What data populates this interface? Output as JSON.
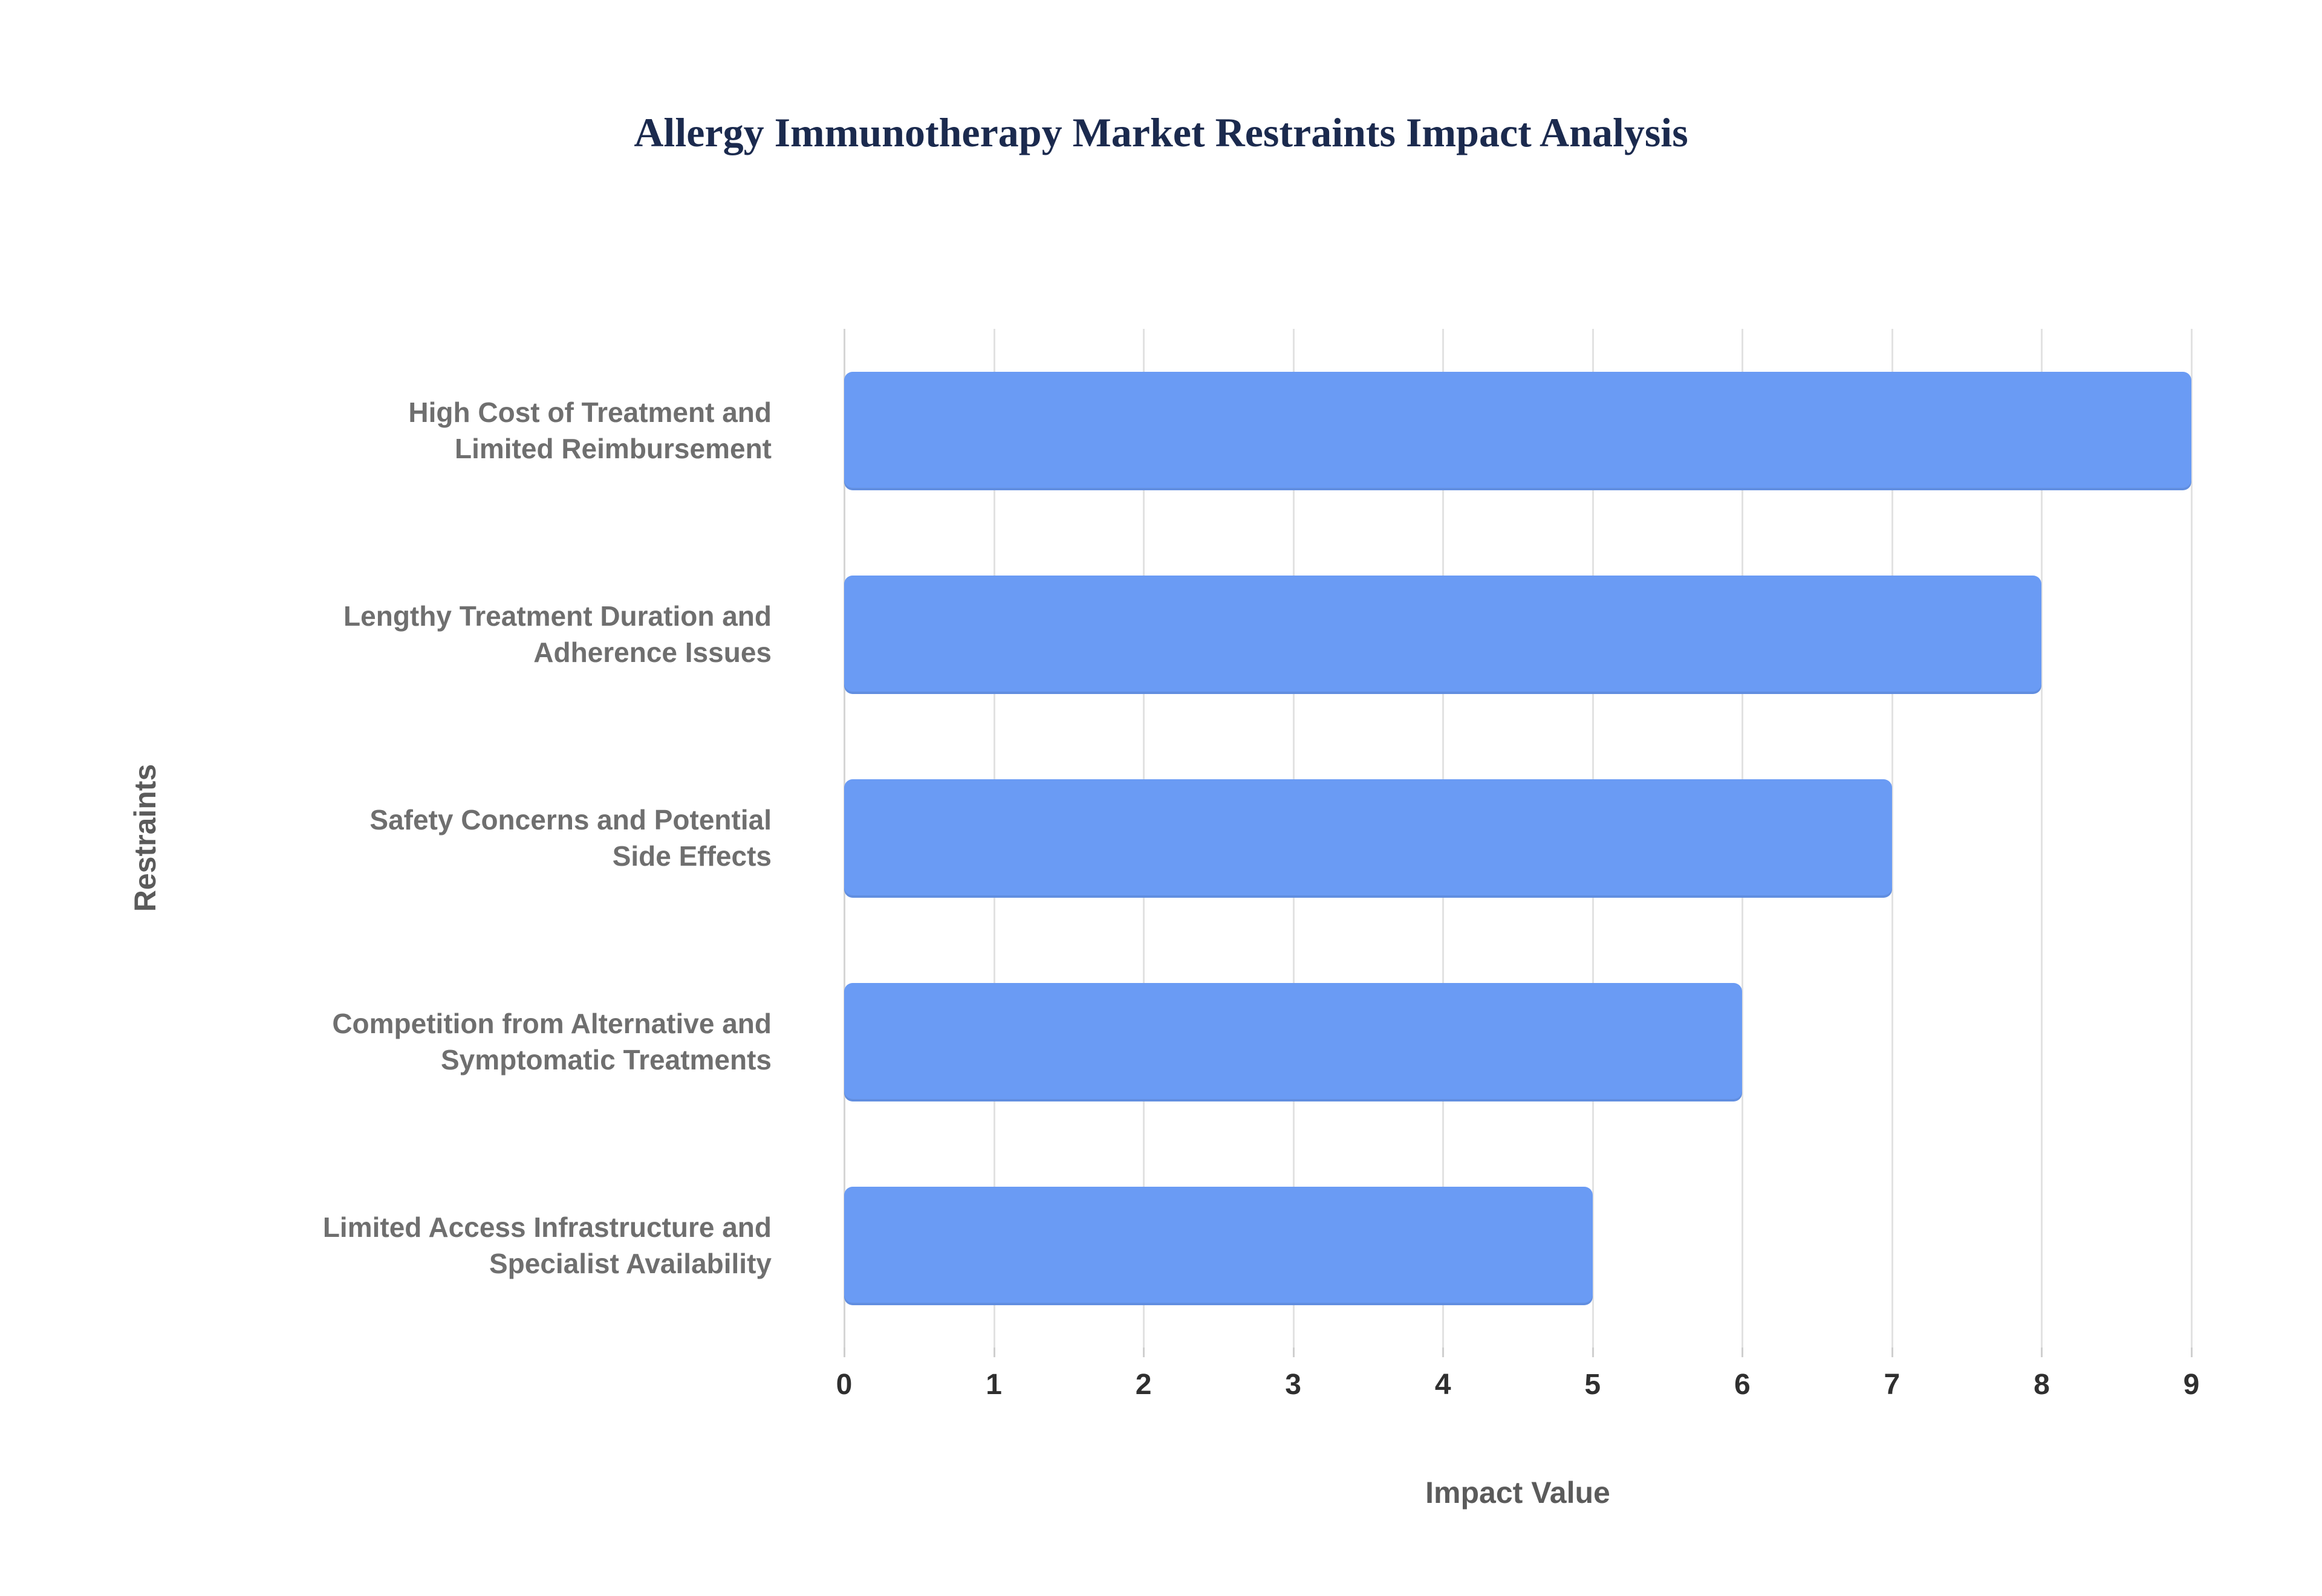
{
  "title": "Allergy Immunotherapy Market Restraints Impact Analysis",
  "chart_data": {
    "type": "bar",
    "orientation": "horizontal",
    "title": "Allergy Immunotherapy Market Restraints Impact Analysis",
    "xlabel": "Impact Value",
    "ylabel": "Restraints",
    "categories": [
      "High Cost of Treatment and Limited Reimbursement",
      "Lengthy Treatment Duration and Adherence Issues",
      "Safety Concerns and Potential Side Effects",
      "Competition from Alternative and Symptomatic Treatments",
      "Limited Access Infrastructure and Specialist Availability"
    ],
    "values": [
      9,
      8,
      7,
      6,
      5
    ],
    "xlim": [
      0,
      9
    ],
    "xticks": [
      0,
      1,
      2,
      3,
      4,
      5,
      6,
      7,
      8,
      9
    ],
    "grid": true,
    "legend": "none",
    "colors": {
      "bar": "#6a9bf4",
      "title": "#1b2a4e",
      "category_label": "#6f6f6f",
      "tick_label": "#2f2f2f",
      "axis_title": "#5b5b5b",
      "gridline": "#e2e2e2",
      "background": "#ffffff"
    }
  }
}
